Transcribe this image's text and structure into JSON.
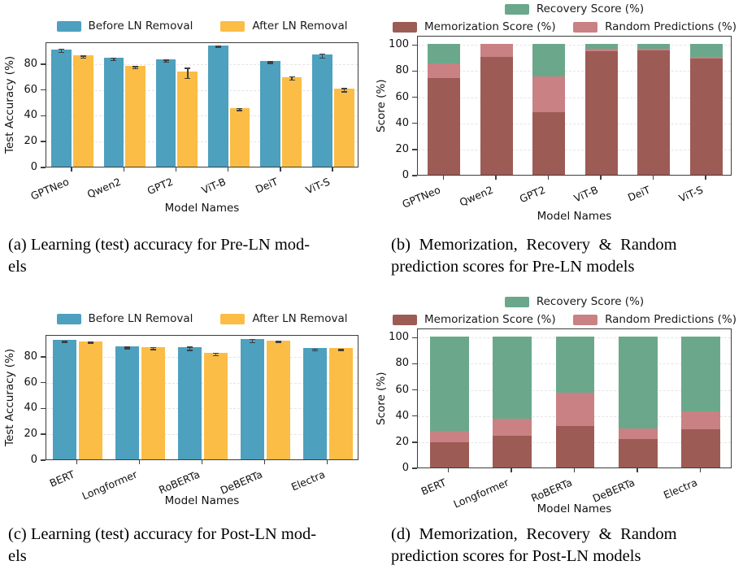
{
  "colors": {
    "before": "#4DA0BE",
    "after": "#FBBD45",
    "memorization": "#9C5B55",
    "random": "#C98183",
    "recovery": "#6BA88B",
    "axis": "#3d3d3d",
    "grid": "#e5e5e5",
    "error": "#3f3f3f"
  },
  "captions": {
    "a": [
      "(a) Learning (test) accuracy for Pre-LN mod-",
      "els"
    ],
    "b": [
      "(b) Memorization, Recovery & Random",
      "prediction scores for Pre-LN models"
    ],
    "c": [
      "(c) Learning (test) accuracy for Post-LN mod-",
      "els"
    ],
    "d": [
      "(d) Memorization, Recovery & Random",
      "prediction scores for Post-LN models"
    ]
  },
  "chart_data": [
    {
      "id": "a",
      "type": "grouped-bar",
      "title": "(a) Learning (test) accuracy for Pre-LN models",
      "xlabel": "Model Names",
      "ylabel": "Test Accuracy (%)",
      "categories": [
        "GPTNeo",
        "Qwen2",
        "GPT2",
        "ViT-B",
        "DeiT",
        "ViT-S"
      ],
      "series": [
        {
          "name": "Before LN Removal",
          "color_key": "before",
          "values": [
            91,
            84.5,
            83,
            94,
            82,
            87
          ],
          "errors": [
            1.2,
            1.0,
            0.8,
            0.5,
            0.6,
            1.5
          ]
        },
        {
          "name": "After LN Removal",
          "color_key": "after",
          "values": [
            86,
            78,
            73.5,
            45.5,
            69.5,
            60.5
          ],
          "errors": [
            0.8,
            0.8,
            4.0,
            0.8,
            1.3,
            1.3
          ]
        }
      ],
      "yticks": [
        0,
        20,
        40,
        60,
        80
      ],
      "ylim": [
        0,
        97
      ],
      "grid": true,
      "legend_position": "top-center"
    },
    {
      "id": "b",
      "type": "stacked-bar",
      "title": "(b) Memorization, Recovery & Random prediction scores for Pre-LN models",
      "xlabel": "Model Names",
      "ylabel": "Score (%)",
      "categories": [
        "GPTNeo",
        "Qwen2",
        "GPT2",
        "ViT-B",
        "DeiT",
        "ViT-S"
      ],
      "series": [
        {
          "name": "Memorization Score (%)",
          "color_key": "memorization",
          "values": [
            74,
            90.5,
            48,
            94.5,
            95.5,
            89
          ]
        },
        {
          "name": "Random Predictions (%)",
          "color_key": "random",
          "values": [
            11,
            9.5,
            27.5,
            2,
            1,
            1.5
          ]
        },
        {
          "name": "Recovery Score (%)",
          "color_key": "recovery",
          "values": [
            15,
            0,
            24.5,
            3.5,
            3.5,
            9.5
          ]
        }
      ],
      "yticks": [
        0,
        20,
        40,
        60,
        80,
        100
      ],
      "ylim": [
        0,
        107
      ],
      "grid": true,
      "legend_position": "top-two-rows"
    },
    {
      "id": "c",
      "type": "grouped-bar",
      "title": "(c) Learning (test) accuracy for Post-LN models",
      "xlabel": "Model Names",
      "ylabel": "Test Accuracy (%)",
      "categories": [
        "BERT",
        "Longformer",
        "RoBERTa",
        "DeBERTa",
        "Electra"
      ],
      "series": [
        {
          "name": "Before LN Removal",
          "color_key": "before",
          "values": [
            92.5,
            87.5,
            87,
            93,
            86
          ],
          "errors": [
            0.5,
            0.6,
            1.2,
            1.2,
            0.6
          ]
        },
        {
          "name": "After LN Removal",
          "color_key": "after",
          "values": [
            91.5,
            87,
            82.5,
            92,
            86
          ],
          "errors": [
            0.5,
            0.8,
            1.0,
            0.5,
            0.4
          ]
        }
      ],
      "yticks": [
        0,
        20,
        40,
        60,
        80
      ],
      "ylim": [
        0,
        97
      ],
      "grid": true,
      "legend_position": "top-center"
    },
    {
      "id": "d",
      "type": "stacked-bar",
      "title": "(d) Memorization, Recovery & Random prediction scores for Post-LN models",
      "xlabel": "Model Names",
      "ylabel": "Score (%)",
      "categories": [
        "BERT",
        "Longformer",
        "RoBERTa",
        "DeBERTa",
        "Electra"
      ],
      "series": [
        {
          "name": "Memorization Score (%)",
          "color_key": "memorization",
          "values": [
            19,
            24.5,
            32,
            21.5,
            29.5
          ]
        },
        {
          "name": "Random Predictions (%)",
          "color_key": "random",
          "values": [
            9,
            13,
            25.5,
            8.5,
            13.5
          ]
        },
        {
          "name": "Recovery Score (%)",
          "color_key": "recovery",
          "values": [
            72,
            62.5,
            42.5,
            70,
            57
          ]
        }
      ],
      "yticks": [
        0,
        20,
        40,
        60,
        80,
        100
      ],
      "ylim": [
        0,
        107
      ],
      "grid": true,
      "legend_position": "top-two-rows"
    }
  ]
}
